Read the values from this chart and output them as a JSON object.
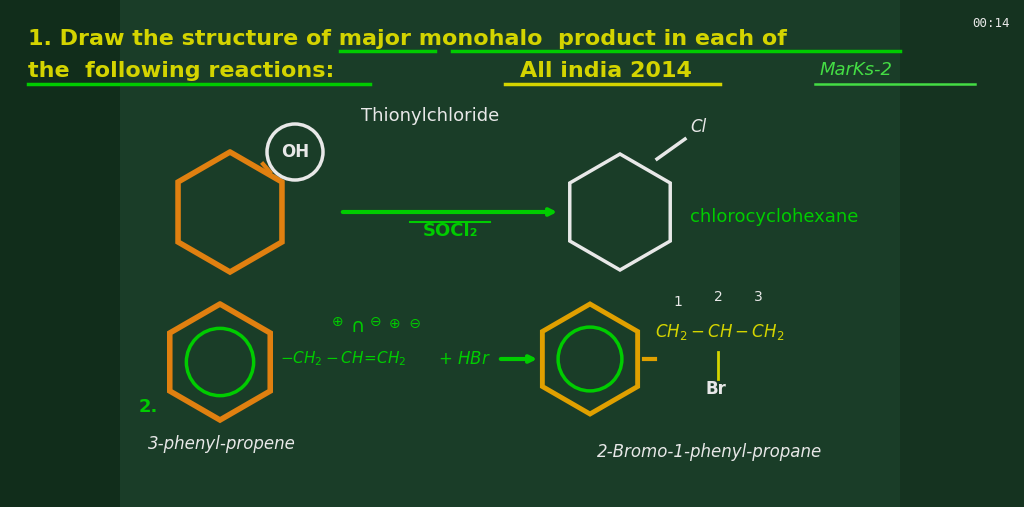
{
  "bg_color": "#1e3d2a",
  "bg_color2": "#0d2918",
  "timer": "00:14",
  "title_line1": "1. Draw the structure of major monohalo  product in each of",
  "title_line2": "the  following reactions:",
  "all_india": "All india 2014",
  "marks": "MarKs-2",
  "thionyl": "Thionylchloride",
  "reagent": "SOCl₂",
  "product1_label": "chlorocyclohexane",
  "cl_label": "Cl",
  "phenyl_propene_label": "3-phenyl-propene",
  "reaction2_product_label": "2-Bromo-1-phenyl-propane",
  "yellow": "#d4d400",
  "green_text": "#00cc00",
  "white": "#e8e8e8",
  "orange": "#e08010",
  "dark_green_text": "#008800",
  "bright_green": "#22cc22",
  "title_yellow": "#cccc00",
  "marks_green": "#44dd44",
  "all_india_yellow": "#dddd00"
}
